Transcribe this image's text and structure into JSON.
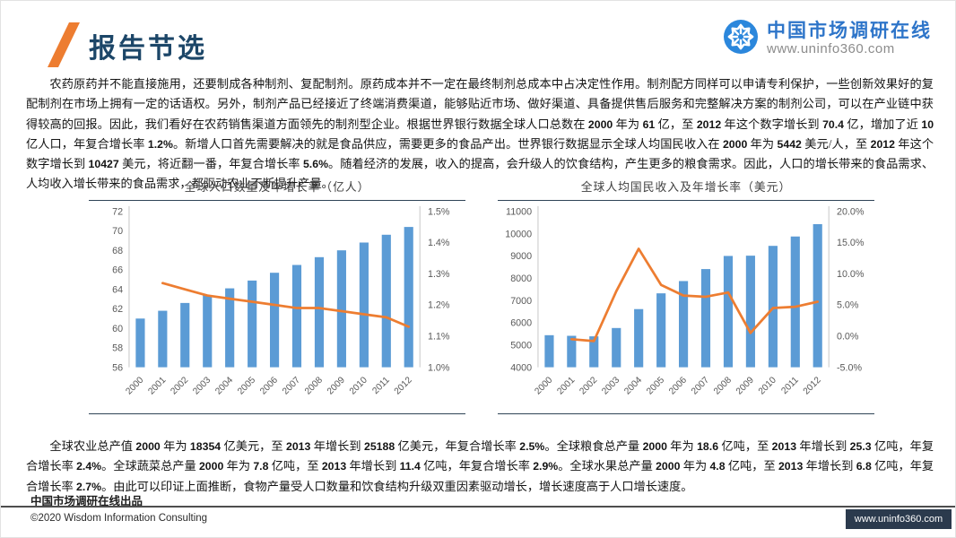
{
  "header": {
    "title": "报告节选",
    "logo": {
      "name": "中国市场调研在线",
      "url": "www.uninfo360.com"
    }
  },
  "colors": {
    "accent_orange": "#ED7D31",
    "title_navy": "#1C4668",
    "brand_blue": "#2E75C9",
    "bar_blue": "#5B9BD5",
    "line_orange": "#ED7D31",
    "axis_gray": "#595959",
    "footer_navy": "#2B3A4D"
  },
  "paragraphs": {
    "intro": [
      {
        "t": "农药原药并不能直接施用，还要制成各种制剂、复配制剂。原药成本并不一定在最终制剂总成本中占决定性作用。制剂配方同样可以申请专利保护，一些创新效果好的复配制剂在市场上拥有一定的话语权。另外，制剂产品已经接近了终端消费渠道，能够贴近市场、做好渠道、具备提供售后服务和完整解决方案的制剂公司，可以在产业链中获得较高的回报。因此，我们看好在农药销售渠道方面领先的制剂型企业。根据世界银行数据全球人口总数在 "
      },
      {
        "t": "2000",
        "b": true
      },
      {
        "t": " 年为 "
      },
      {
        "t": "61",
        "b": true
      },
      {
        "t": " 亿，至 "
      },
      {
        "t": "2012",
        "b": true
      },
      {
        "t": " 年这个数字增长到 "
      },
      {
        "t": "70.4",
        "b": true
      },
      {
        "t": " 亿，增加了近 "
      },
      {
        "t": "10",
        "b": true
      },
      {
        "t": " 亿人口，年复合增长率 "
      },
      {
        "t": "1.2%",
        "b": true
      },
      {
        "t": "。新增人口首先需要解决的就是食品供应，需要更多的食品产出。世界银行数据显示全球人均国民收入在 "
      },
      {
        "t": "2000",
        "b": true
      },
      {
        "t": " 年为 "
      },
      {
        "t": "5442",
        "b": true
      },
      {
        "t": " 美元/人，至 "
      },
      {
        "t": "2012",
        "b": true
      },
      {
        "t": " 年这个数字增长到 "
      },
      {
        "t": "10427",
        "b": true
      },
      {
        "t": " 美元，将近翻一番，年复合增长率 "
      },
      {
        "t": "5.6%",
        "b": true
      },
      {
        "t": "。随着经济的发展，收入的提高，会升级人的饮食结构，产生更多的粮食需求。因此，人口的增长带来的食品需求、人均收入增长带来的食品需求，都驱动农业不断提升产量。"
      }
    ],
    "agri": [
      {
        "t": "全球农业总产值 "
      },
      {
        "t": "2000",
        "b": true
      },
      {
        "t": " 年为 "
      },
      {
        "t": "18354",
        "b": true
      },
      {
        "t": " 亿美元，至 "
      },
      {
        "t": "2013",
        "b": true
      },
      {
        "t": " 年增长到 "
      },
      {
        "t": "25188",
        "b": true
      },
      {
        "t": " 亿美元，年复合增长率 "
      },
      {
        "t": "2.5%",
        "b": true
      },
      {
        "t": "。全球粮食总产量 "
      },
      {
        "t": "2000",
        "b": true
      },
      {
        "t": " 年为 "
      },
      {
        "t": "18.6",
        "b": true
      },
      {
        "t": " 亿吨，至 "
      },
      {
        "t": "2013",
        "b": true
      },
      {
        "t": " 年增长到 "
      },
      {
        "t": "25.3",
        "b": true
      },
      {
        "t": " 亿吨，年复合增长率 "
      },
      {
        "t": "2.4%",
        "b": true
      },
      {
        "t": "。全球蔬菜总产量 "
      },
      {
        "t": "2000",
        "b": true
      },
      {
        "t": " 年为 "
      },
      {
        "t": "7.8",
        "b": true
      },
      {
        "t": " 亿吨，至 "
      },
      {
        "t": "2013",
        "b": true
      },
      {
        "t": " 年增长到 "
      },
      {
        "t": "11.4",
        "b": true
      },
      {
        "t": " 亿吨，年复合增长率 "
      },
      {
        "t": "2.9%",
        "b": true
      },
      {
        "t": "。全球水果总产量 "
      },
      {
        "t": "2000",
        "b": true
      },
      {
        "t": " 年为 "
      },
      {
        "t": "4.8",
        "b": true
      },
      {
        "t": " 亿吨，至 "
      },
      {
        "t": "2013",
        "b": true
      },
      {
        "t": " 年增长到 "
      },
      {
        "t": "6.8",
        "b": true
      },
      {
        "t": " 亿吨，年复合增长率 "
      },
      {
        "t": "2.7%",
        "b": true
      },
      {
        "t": "。由此可以印证上面推断，食物产量受人口数量和饮食结构升级双重因素驱动增长，增长速度高于人口增长速度。"
      }
    ]
  },
  "footer": {
    "produced_by": "中国市场调研在线出品",
    "copyright": "©2020 Wisdom Information Consulting",
    "site": "www.uninfo360.com"
  },
  "chart_data": [
    {
      "type": "bar",
      "title": "全球人口数量及年增长率（亿人）",
      "categories": [
        "2000",
        "2001",
        "2002",
        "2003",
        "2004",
        "2005",
        "2006",
        "2007",
        "2008",
        "2009",
        "2010",
        "2011",
        "2012"
      ],
      "series": [
        {
          "name": "全球人口数量(亿人)",
          "type": "bar",
          "axis": "left",
          "values": [
            61.0,
            61.8,
            62.6,
            63.4,
            64.1,
            64.9,
            65.7,
            66.5,
            67.3,
            68.0,
            68.8,
            69.6,
            70.4
          ]
        },
        {
          "name": "年增长率",
          "type": "line",
          "axis": "right",
          "values": [
            null,
            1.27,
            1.25,
            1.23,
            1.22,
            1.21,
            1.2,
            1.19,
            1.19,
            1.18,
            1.17,
            1.16,
            1.13
          ]
        }
      ],
      "left_axis": {
        "min": 56,
        "max": 72,
        "step": 2,
        "format": "int"
      },
      "right_axis": {
        "min": 1.0,
        "max": 1.5,
        "step": 0.1,
        "format": "pct1"
      },
      "grid": false,
      "legend_position": "none",
      "bar_color": "#5B9BD5",
      "line_color": "#ED7D31"
    },
    {
      "type": "bar",
      "title": "全球人均国民收入及年增长率（美元）",
      "categories": [
        "2000",
        "2001",
        "2002",
        "2003",
        "2004",
        "2005",
        "2006",
        "2007",
        "2008",
        "2009",
        "2010",
        "2011",
        "2012"
      ],
      "series": [
        {
          "name": "全球人均国民收入(美元)",
          "type": "bar",
          "axis": "left",
          "values": [
            5440,
            5410,
            5390,
            5760,
            6610,
            7320,
            7870,
            8410,
            9000,
            9010,
            9450,
            9870,
            10427
          ]
        },
        {
          "name": "年增长率",
          "type": "line",
          "axis": "right",
          "values": [
            null,
            -0.5,
            -0.8,
            7.2,
            14.0,
            8.2,
            6.5,
            6.3,
            7.0,
            0.5,
            4.5,
            4.7,
            5.5
          ]
        }
      ],
      "left_axis": {
        "min": 4000,
        "max": 11000,
        "step": 1000,
        "format": "int"
      },
      "right_axis": {
        "min": -5,
        "max": 20,
        "step": 5,
        "format": "pct1"
      },
      "grid": false,
      "legend_position": "none",
      "bar_color": "#5B9BD5",
      "line_color": "#ED7D31"
    }
  ]
}
